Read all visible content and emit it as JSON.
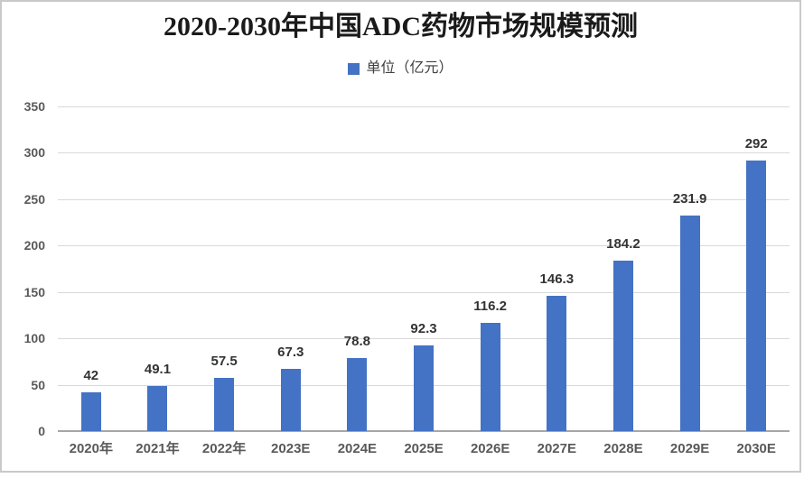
{
  "chart_data": {
    "type": "bar",
    "title": "2020-2030年中国ADC药物市场规模预测",
    "legend": [
      "单位（亿元）"
    ],
    "legend_position": "top",
    "categories": [
      "2020年",
      "2021年",
      "2022年",
      "2023E",
      "2024E",
      "2025E",
      "2026E",
      "2027E",
      "2028E",
      "2029E",
      "2030E"
    ],
    "values": [
      42,
      49.1,
      57.5,
      67.3,
      78.8,
      92.3,
      116.2,
      146.3,
      184.2,
      231.9,
      292
    ],
    "value_labels": [
      "42",
      "49.1",
      "57.5",
      "67.3",
      "78.8",
      "92.3",
      "116.2",
      "146.3",
      "184.2",
      "231.9",
      "292"
    ],
    "xlabel": "",
    "ylabel": "",
    "ylim": [
      0,
      350
    ],
    "yticks": [
      0,
      50,
      100,
      150,
      200,
      250,
      300,
      350
    ],
    "grid": true,
    "colors": {
      "bar": "#4472C4",
      "gridline": "#D9D9D9",
      "axis_line": "#A6A6A6",
      "tick_label": "#595959",
      "data_label": "#333333",
      "title": "#1A1A1A",
      "legend_text": "#404040",
      "frame_border": "#C9C9C9"
    }
  }
}
